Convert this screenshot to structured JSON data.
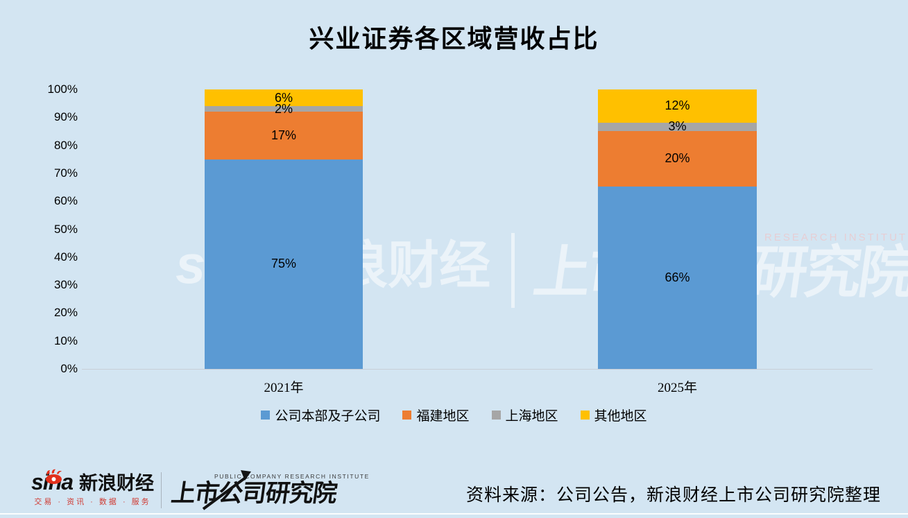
{
  "title": "兴业证券各区域营收占比",
  "chart_data": {
    "type": "bar",
    "stacked": true,
    "percent_stacked": true,
    "title": "兴业证券各区域营收占比",
    "categories": [
      "2021年",
      "2025年"
    ],
    "series": [
      {
        "name": "公司本部及子公司",
        "color": "#5B9AD3",
        "values": [
          75,
          66
        ],
        "labels": [
          "75%",
          "66%"
        ]
      },
      {
        "name": "福建地区",
        "color": "#ED7D31",
        "values": [
          17,
          20
        ],
        "labels": [
          "17%",
          "20%"
        ]
      },
      {
        "name": "上海地区",
        "color": "#A6A6A6",
        "values": [
          2,
          3
        ],
        "labels": [
          "2%",
          "3%"
        ]
      },
      {
        "name": "其他地区",
        "color": "#FFC000",
        "values": [
          6,
          12
        ],
        "labels": [
          "6%",
          "12%"
        ]
      }
    ],
    "ylim": [
      0,
      100
    ],
    "ytick_labels": [
      "0%",
      "10%",
      "20%",
      "30%",
      "40%",
      "50%",
      "60%",
      "70%",
      "80%",
      "90%",
      "100%"
    ],
    "grid": false,
    "legend_position": "bottom",
    "background_color": "#D3E5F2"
  },
  "watermark": {
    "sina_text": "sina",
    "brand": "新浪财经",
    "tagline": "· 服务",
    "institute_en": "PUBLIC COMPANY RESEARCH INSTITUTE",
    "institute_cn": "上市公司研究院"
  },
  "footer": {
    "sina_text": "sina",
    "brand": "新浪财经",
    "tagline": "交易 · 资讯 · 数据 · 服务",
    "institute_en": "PUBLIC COMPANY RESEARCH INSTITUTE",
    "institute_cn": "上市公司研究院",
    "source": "资料来源：公司公告，新浪财经上市公司研究院整理"
  }
}
